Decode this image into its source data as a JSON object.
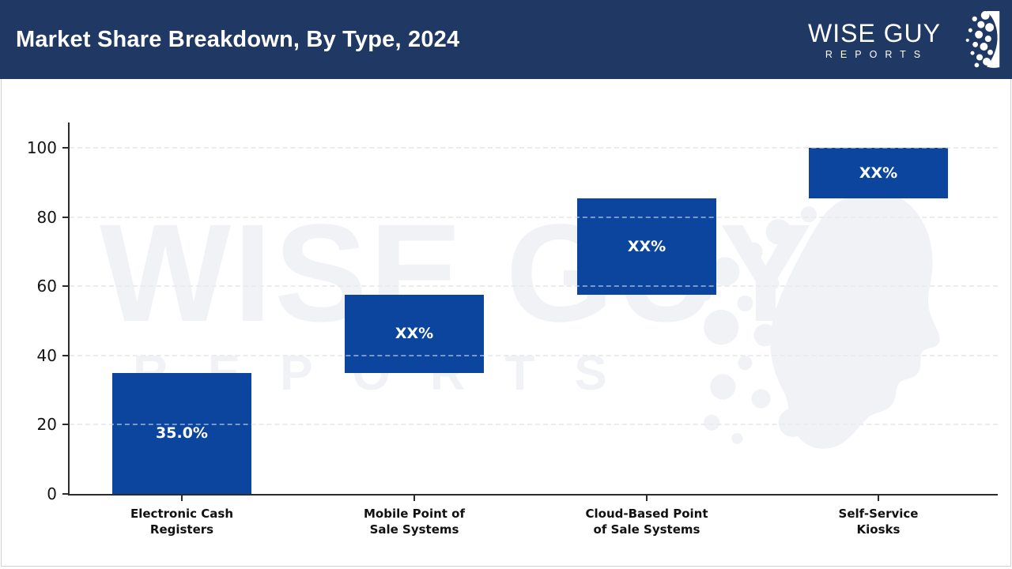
{
  "header": {
    "title": "Market Share Breakdown, By Type, 2024",
    "brand": {
      "name": "WISE GUY",
      "subname": "REPORTS"
    }
  },
  "watermark": {
    "line1": "WISE GUY",
    "line2": "REPORTS"
  },
  "colors": {
    "header_bg": "#1F3864",
    "bar": "#0B459D",
    "bar_label": "#FFFFFF",
    "grid": "#DCDCDC",
    "axis": "#2B2B2B",
    "watermark": "#F1F2F5"
  },
  "chart_data": {
    "type": "bar",
    "variant": "waterfall",
    "title": "Market Share Breakdown, By Type, 2024",
    "xlabel": "",
    "ylabel": "",
    "ylim": [
      0,
      107
    ],
    "yticks": [
      0,
      20,
      40,
      60,
      80,
      100
    ],
    "grid": "dashed-horizontal",
    "legend": "none",
    "categories": [
      [
        "Electronic Cash",
        "Registers"
      ],
      [
        "Mobile Point of",
        "Sale Systems"
      ],
      [
        "Cloud-Based Point",
        "of Sale Systems"
      ],
      [
        "Self-Service",
        "Kiosks"
      ]
    ],
    "bars": [
      {
        "start": 0,
        "end": 35,
        "label": "35.0%"
      },
      {
        "start": 35,
        "end": 57.5,
        "label": "XX%"
      },
      {
        "start": 57.5,
        "end": 85.5,
        "label": "XX%"
      },
      {
        "start": 85.5,
        "end": 100,
        "label": "XX%"
      }
    ]
  }
}
